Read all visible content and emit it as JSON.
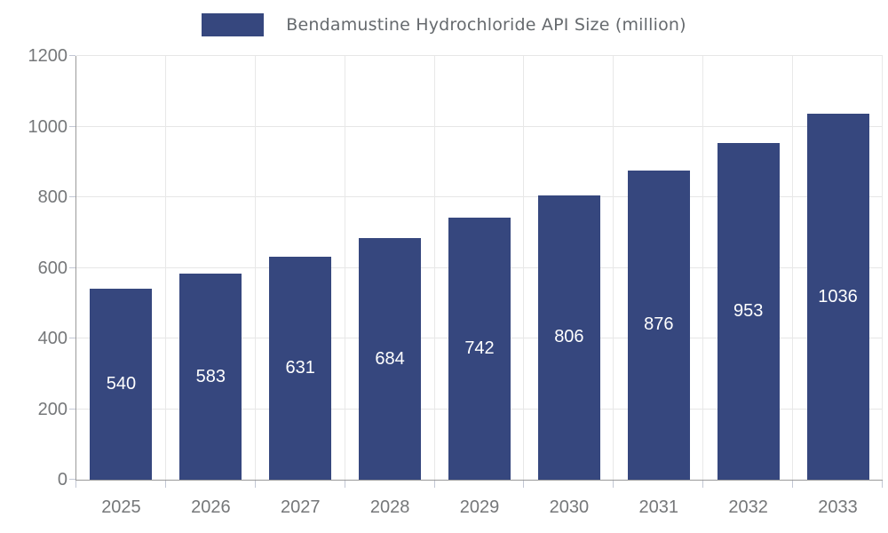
{
  "chart_data": {
    "type": "bar",
    "title": "",
    "legend": {
      "label": "Bendamustine Hydrochloride API Size (million)",
      "position": "top"
    },
    "categories": [
      "2025",
      "2026",
      "2027",
      "2028",
      "2029",
      "2030",
      "2031",
      "2032",
      "2033"
    ],
    "values": [
      540,
      583,
      631,
      684,
      742,
      806,
      876,
      953,
      1036
    ],
    "xlabel": "",
    "ylabel": "",
    "ylim": [
      0,
      1200
    ],
    "yticks": [
      0,
      200,
      400,
      600,
      800,
      1000,
      1200
    ],
    "grid": true,
    "value_labels": "inside-center",
    "colors": {
      "bar": "#36477e",
      "axis_line": "#9a9a9a",
      "grid_line": "#e6e6e6",
      "tick_mark": "#c2c7d4",
      "tick_label": "#757779",
      "value_label": "#ffffff",
      "legend_text": "#666a6e",
      "background": "#ffffff"
    }
  }
}
